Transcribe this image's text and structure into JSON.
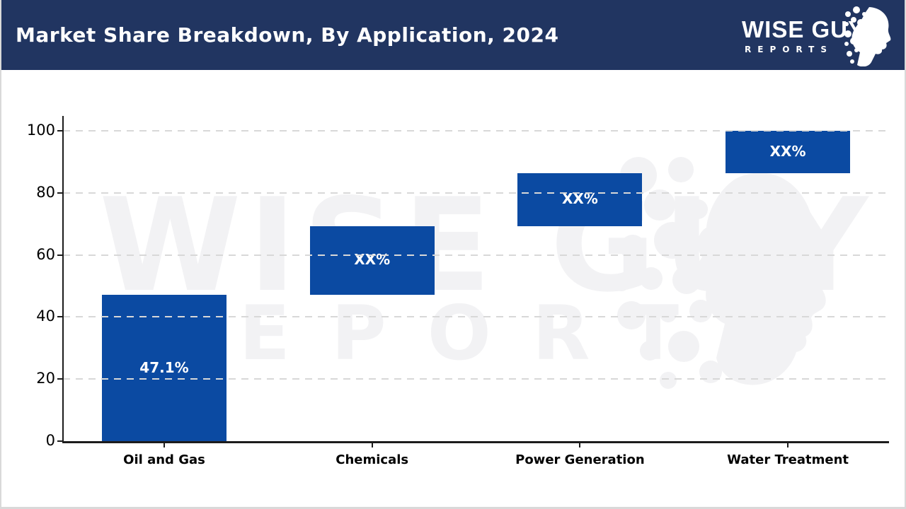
{
  "header": {
    "title": "Market Share Breakdown, By Application, 2024",
    "background": "#213561",
    "logo": {
      "brand_line1": "WISE GUY",
      "brand_line2": "REPORTS"
    }
  },
  "watermark": {
    "line1": "WISE GUY",
    "line2": "REPORTS"
  },
  "chart_data": {
    "type": "bar",
    "subtype": "waterfall",
    "title": "Market Share Breakdown, By Application, 2024",
    "categories": [
      "Oil and Gas",
      "Chemicals",
      "Power Generation",
      "Water Treatment"
    ],
    "segments": [
      {
        "category": "Oil and Gas",
        "start": 0,
        "end": 47.1,
        "label": "47.1%"
      },
      {
        "category": "Chemicals",
        "start": 47.1,
        "end": 69.3,
        "label": "XX%"
      },
      {
        "category": "Power Generation",
        "start": 69.3,
        "end": 86.3,
        "label": "XX%"
      },
      {
        "category": "Water Treatment",
        "start": 86.3,
        "end": 100,
        "label": "XX%"
      }
    ],
    "xlabel": "",
    "ylabel": "",
    "ylim": [
      0,
      100
    ],
    "yticks": [
      0,
      20,
      40,
      60,
      80,
      100
    ],
    "grid": "horizontal-dashed",
    "legend_position": "none",
    "bar_color": "#0b4aa2",
    "bar_label_color": "#ffffff",
    "axis_color": "#1c1c1c",
    "grid_color": "#d8d8d8"
  }
}
